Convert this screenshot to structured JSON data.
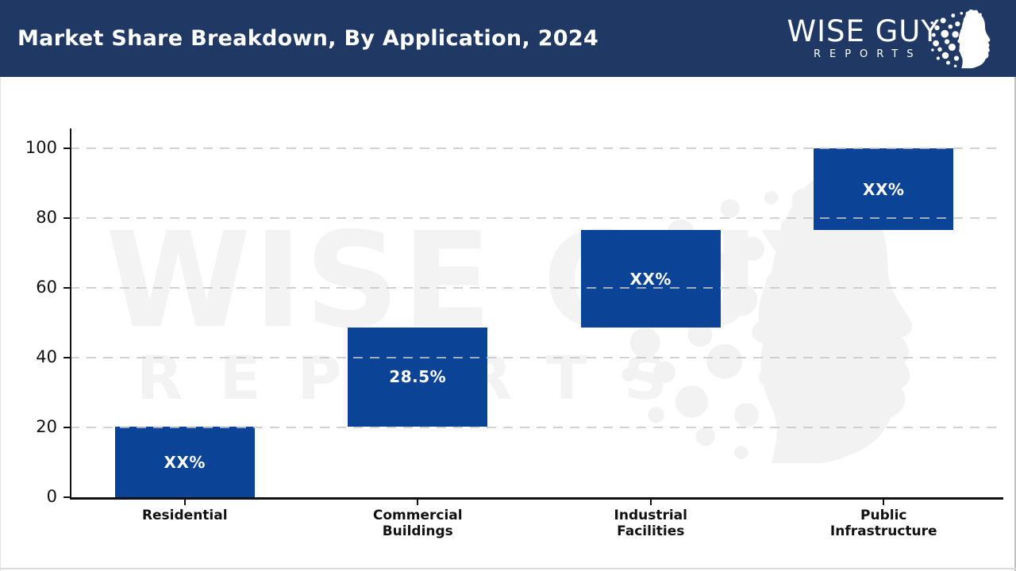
{
  "header": {
    "title": "Market Share Breakdown, By Application, 2024",
    "logo": {
      "line1": "WISE GUY",
      "line2": "REPORTS"
    }
  },
  "watermark": {
    "line1": "WISE GUY",
    "line2": "REPORTS"
  },
  "chart_data": {
    "type": "bar",
    "subtype": "waterfall-floating-bars",
    "title": "Market Share Breakdown, By Application, 2024",
    "xlabel": "",
    "ylabel": "",
    "ylim": [
      0,
      100
    ],
    "yticks": [
      0,
      20,
      40,
      60,
      80,
      100
    ],
    "grid": "horizontal-dashed",
    "legend": "none",
    "bar_color": "#0b4397",
    "value_label_color": "#ffffff",
    "categories": [
      "Residential",
      "Commercial Buildings",
      "Industrial Facilities",
      "Public Infrastructure"
    ],
    "tick_labels": [
      [
        "Residential"
      ],
      [
        "Commercial",
        "Buildings"
      ],
      [
        "Industrial",
        "Facilities"
      ],
      [
        "Public",
        "Infrastructure"
      ]
    ],
    "series": [
      {
        "name": "Market Share",
        "segments": [
          {
            "category": "Residential",
            "start": 0,
            "end": 20.2,
            "label": "XX%"
          },
          {
            "category": "Commercial Buildings",
            "start": 20.2,
            "end": 48.7,
            "label": "28.5%",
            "value": 28.5
          },
          {
            "category": "Industrial Facilities",
            "start": 48.7,
            "end": 76.5,
            "label": "XX%"
          },
          {
            "category": "Public Infrastructure",
            "start": 76.5,
            "end": 100,
            "label": "XX%"
          }
        ]
      }
    ]
  },
  "colors": {
    "header_bg": "#1f3864",
    "bar": "#0b4397",
    "gridline": "#c6c6c6",
    "axis": "#111111",
    "watermark": "#f3f3f3"
  }
}
